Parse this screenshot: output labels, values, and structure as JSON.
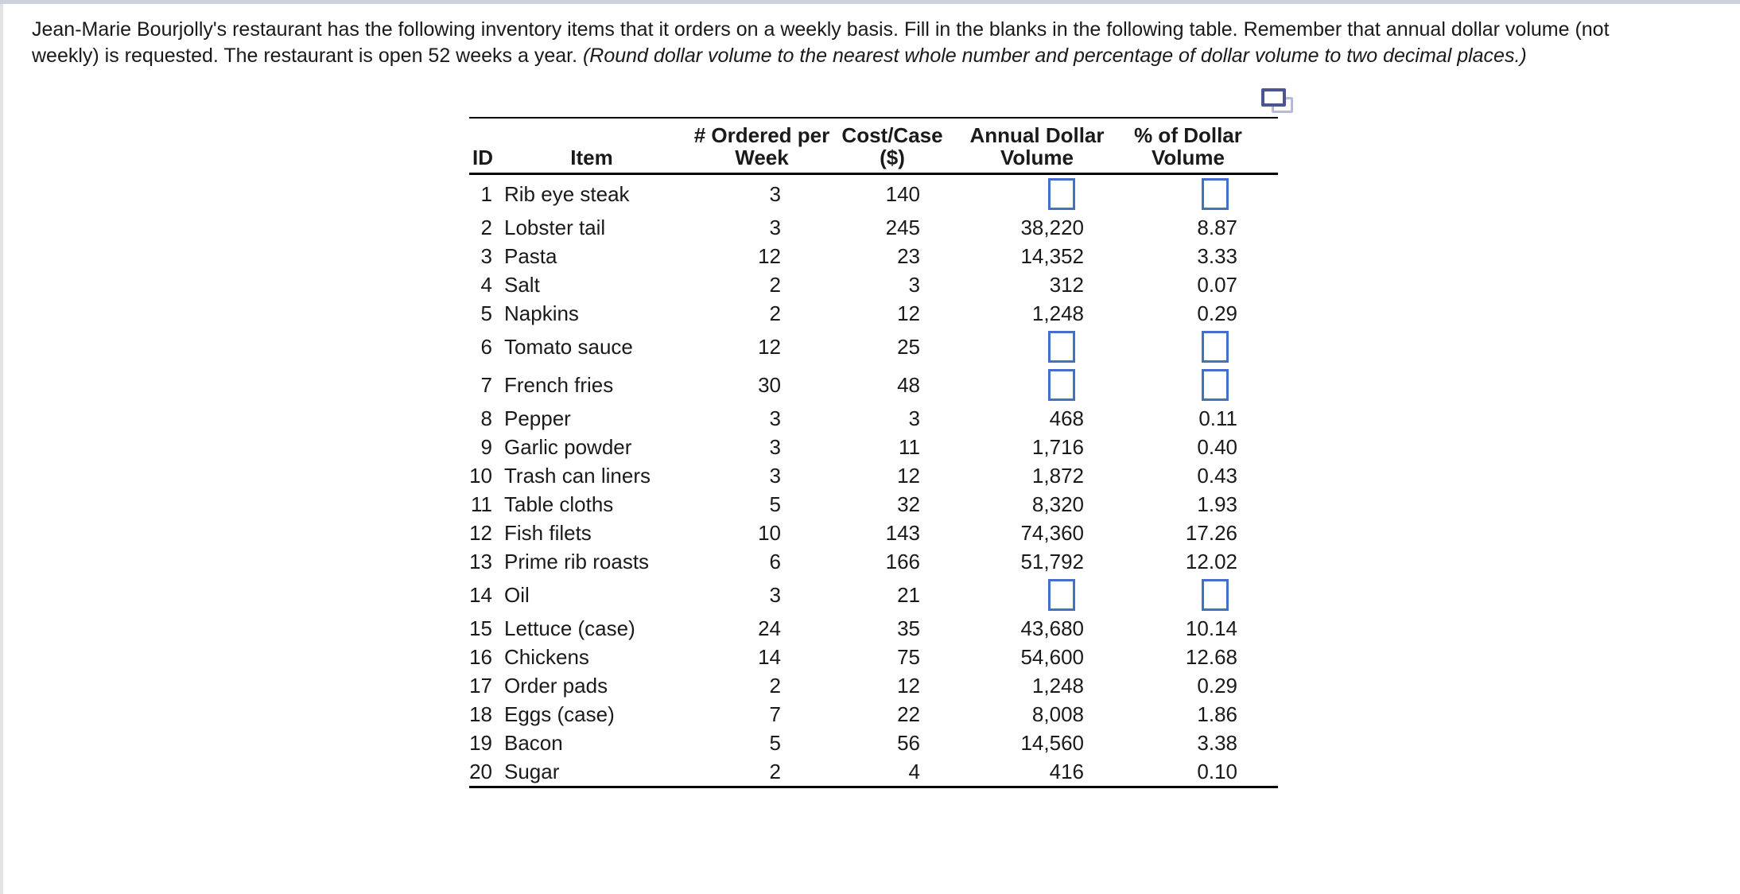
{
  "accent_colors": {
    "input_box_border": "#4170c4",
    "copy_icon_front": "#4b5591",
    "copy_icon_back": "#b4badb",
    "top_edge_bar": "#ccd1da"
  },
  "question": {
    "line1": "Jean-Marie Bourjolly's restaurant has the following inventory items that it orders on a weekly basis. Fill in the blanks in the following table. Remember that annual dollar volume (not",
    "line2_normal": "weekly) is requested. The restaurant is open 52 weeks a year. ",
    "line2_italic": "(Round dollar volume to the nearest whole number and percentage of dollar volume to two decimal places.)"
  },
  "icons": {
    "copy_table_icon": "duplicate-window-icon"
  },
  "table": {
    "headers": {
      "id": "ID",
      "item": "Item",
      "week1": "# Ordered per",
      "week2": "Week",
      "cost1": "Cost/Case",
      "cost2": "($)",
      "annual1": "Annual Dollar",
      "annual2": "Volume",
      "pct1": "% of Dollar",
      "pct2": "Volume"
    },
    "rows": [
      {
        "id": "1",
        "item": "Rib eye steak",
        "week": "3",
        "cost": "140",
        "annual": "",
        "pct": "",
        "blank": true
      },
      {
        "id": "2",
        "item": "Lobster tail",
        "week": "3",
        "cost": "245",
        "annual": "38,220",
        "pct": "8.87",
        "blank": false
      },
      {
        "id": "3",
        "item": "Pasta",
        "week": "12",
        "cost": "23",
        "annual": "14,352",
        "pct": "3.33",
        "blank": false
      },
      {
        "id": "4",
        "item": "Salt",
        "week": "2",
        "cost": "3",
        "annual": "312",
        "pct": "0.07",
        "blank": false
      },
      {
        "id": "5",
        "item": "Napkins",
        "week": "2",
        "cost": "12",
        "annual": "1,248",
        "pct": "0.29",
        "blank": false
      },
      {
        "id": "6",
        "item": "Tomato sauce",
        "week": "12",
        "cost": "25",
        "annual": "",
        "pct": "",
        "blank": true
      },
      {
        "id": "7",
        "item": "French fries",
        "week": "30",
        "cost": "48",
        "annual": "",
        "pct": "",
        "blank": true
      },
      {
        "id": "8",
        "item": "Pepper",
        "week": "3",
        "cost": "3",
        "annual": "468",
        "pct": "0.11",
        "blank": false
      },
      {
        "id": "9",
        "item": "Garlic powder",
        "week": "3",
        "cost": "11",
        "annual": "1,716",
        "pct": "0.40",
        "blank": false
      },
      {
        "id": "10",
        "item": "Trash can liners",
        "week": "3",
        "cost": "12",
        "annual": "1,872",
        "pct": "0.43",
        "blank": false
      },
      {
        "id": "11",
        "item": "Table cloths",
        "week": "5",
        "cost": "32",
        "annual": "8,320",
        "pct": "1.93",
        "blank": false
      },
      {
        "id": "12",
        "item": "Fish filets",
        "week": "10",
        "cost": "143",
        "annual": "74,360",
        "pct": "17.26",
        "blank": false
      },
      {
        "id": "13",
        "item": "Prime rib roasts",
        "week": "6",
        "cost": "166",
        "annual": "51,792",
        "pct": "12.02",
        "blank": false
      },
      {
        "id": "14",
        "item": "Oil",
        "week": "3",
        "cost": "21",
        "annual": "",
        "pct": "",
        "blank": true
      },
      {
        "id": "15",
        "item": "Lettuce (case)",
        "week": "24",
        "cost": "35",
        "annual": "43,680",
        "pct": "10.14",
        "blank": false
      },
      {
        "id": "16",
        "item": "Chickens",
        "week": "14",
        "cost": "75",
        "annual": "54,600",
        "pct": "12.68",
        "blank": false
      },
      {
        "id": "17",
        "item": "Order pads",
        "week": "2",
        "cost": "12",
        "annual": "1,248",
        "pct": "0.29",
        "blank": false
      },
      {
        "id": "18",
        "item": "Eggs (case)",
        "week": "7",
        "cost": "22",
        "annual": "8,008",
        "pct": "1.86",
        "blank": false
      },
      {
        "id": "19",
        "item": "Bacon",
        "week": "5",
        "cost": "56",
        "annual": "14,560",
        "pct": "3.38",
        "blank": false
      },
      {
        "id": "20",
        "item": "Sugar",
        "week": "2",
        "cost": "4",
        "annual": "416",
        "pct": "0.10",
        "blank": false
      }
    ]
  }
}
